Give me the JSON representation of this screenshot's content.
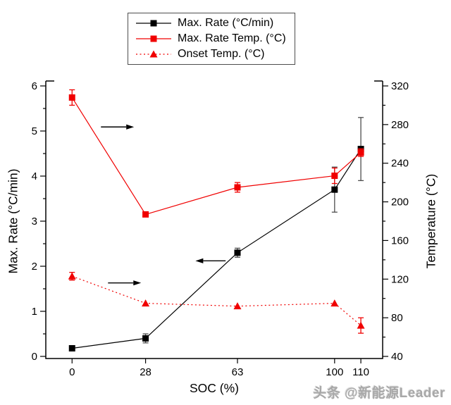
{
  "watermark": "头条 @新能源Leader",
  "chart_data": {
    "type": "line",
    "title": "",
    "xlabel": "SOC (%)",
    "x": [
      0,
      28,
      63,
      100,
      110
    ],
    "x_tick_labels": [
      "0",
      "28",
      "63",
      "100",
      "110"
    ],
    "x_range": [
      -10,
      118.3
    ],
    "grid": false,
    "legend_position": "top-center",
    "axes": {
      "left": {
        "label": "Max. Rate (°C/min)",
        "range": [
          0,
          6
        ],
        "ticks": [
          0,
          1,
          2,
          3,
          4,
          5,
          6
        ],
        "minor_step": 0.5
      },
      "right": {
        "label": "Temperature (°C)",
        "range": [
          40,
          320
        ],
        "ticks": [
          40,
          80,
          120,
          160,
          200,
          240,
          280,
          320
        ],
        "minor_step": 20
      }
    },
    "series": [
      {
        "name": "Max. Rate (°C/min)",
        "axis": "left",
        "color": "#000000",
        "marker": "square",
        "line": "solid",
        "values": [
          0.18,
          0.4,
          2.3,
          3.7,
          4.6
        ],
        "errors": [
          0,
          0.1,
          0.1,
          0.5,
          0.7
        ]
      },
      {
        "name": "Max. Rate Temp. (°C)",
        "axis": "right",
        "color": "#f00000",
        "marker": "square",
        "line": "solid",
        "values": [
          308,
          187,
          215,
          227,
          251
        ],
        "errors": [
          8,
          0,
          5,
          8,
          4
        ]
      },
      {
        "name": "Onset Temp. (°C)",
        "axis": "right",
        "color": "#f00000",
        "marker": "triangle",
        "line": "dotted",
        "values": [
          123,
          95,
          92,
          95,
          72
        ],
        "errors": [
          4,
          0,
          0,
          0,
          8
        ]
      }
    ],
    "annotations": [
      {
        "type": "arrow",
        "points_to": "right-axis",
        "x_tail": 11,
        "x_tip": 23.6,
        "y_left": 5.09
      },
      {
        "type": "arrow",
        "points_to": "left-axis",
        "x_tail": 58.5,
        "x_tip": 47,
        "y_left": 2.12
      },
      {
        "type": "arrow",
        "points_to": "right-axis",
        "x_tail": 13.7,
        "x_tip": 26.3,
        "y_left": 1.63
      }
    ]
  }
}
